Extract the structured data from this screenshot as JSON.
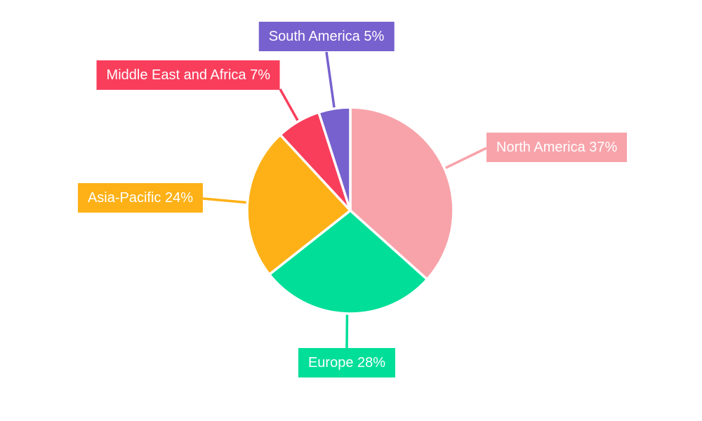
{
  "canvas": {
    "background": "#FFFFFF"
  },
  "chart_data": {
    "type": "pie",
    "title": "",
    "units": "%",
    "direction": "clockwise",
    "start_angle": "12 o'clock",
    "legend_position": "outside-callout-labels",
    "slices": [
      {
        "name": "North America",
        "value": 37,
        "label": "North America 37%",
        "color": "#F8A3AA"
      },
      {
        "name": "Europe",
        "value": 28,
        "label": "Europe 28%",
        "color": "#01DE98"
      },
      {
        "name": "Asia-Pacific",
        "value": 24,
        "label": "Asia-Pacific 24%",
        "color": "#FDB117"
      },
      {
        "name": "Middle East and Africa",
        "value": 7,
        "label": "Middle East and Africa 7%",
        "color": "#F93E5C"
      },
      {
        "name": "South America",
        "value": 5,
        "label": "South America 5%",
        "color": "#7761CE"
      }
    ]
  }
}
